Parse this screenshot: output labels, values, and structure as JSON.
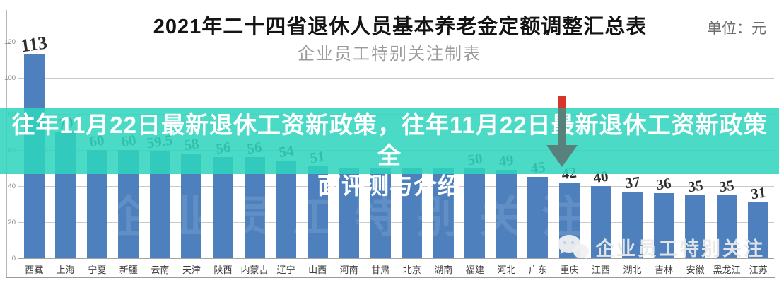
{
  "header": {
    "title": "2021年二十四省退休人员基本养老金定额调整汇总表",
    "unit": "单位：元",
    "subtitle": "企业员工特别关注制表"
  },
  "overlay": {
    "line1": "往年11月22日最新退休工资新政策，往年11月22日最新退休工资新政策全",
    "line2": "面评测与介绍"
  },
  "watermarks": {
    "center_text": "企业员工特别关注",
    "corner_text": "企业员工特别关注"
  },
  "colors": {
    "bar": "#4e80bd",
    "overlay_band": "#2fd5be",
    "arrow_red": "#d8352a",
    "arrow_shaft": "#5a807c",
    "gridline": "#c9c9c9"
  },
  "chart_data": {
    "type": "bar",
    "title": "2021年二十四省退休人员基本养老金定额调整汇总表",
    "xlabel": "",
    "ylabel": "元",
    "ylim": [
      0,
      120
    ],
    "yticks": [
      0,
      20,
      40,
      60,
      80,
      100,
      120
    ],
    "grid": true,
    "legend_position": "none",
    "categories": [
      "西藏",
      "上海",
      "宁夏",
      "新疆",
      "云南",
      "天津",
      "陕西",
      "内蒙古",
      "辽宁",
      "山西",
      "河南",
      "甘肃",
      "北京",
      "湖南",
      "福建",
      "河北",
      "广东",
      "重庆",
      "江西",
      "湖北",
      "吉林",
      "安徽",
      "黑龙江",
      "江苏"
    ],
    "values": [
      113,
      70,
      60,
      60,
      59.5,
      58,
      56,
      56,
      54,
      51,
      50,
      50,
      50,
      50,
      50,
      49,
      45,
      42,
      40,
      37,
      36,
      35,
      35,
      31
    ],
    "hidden_value_labels": [
      "河南",
      "甘肃",
      "北京",
      "湖南"
    ],
    "annotation_arrow": {
      "points_at": "重庆"
    }
  }
}
